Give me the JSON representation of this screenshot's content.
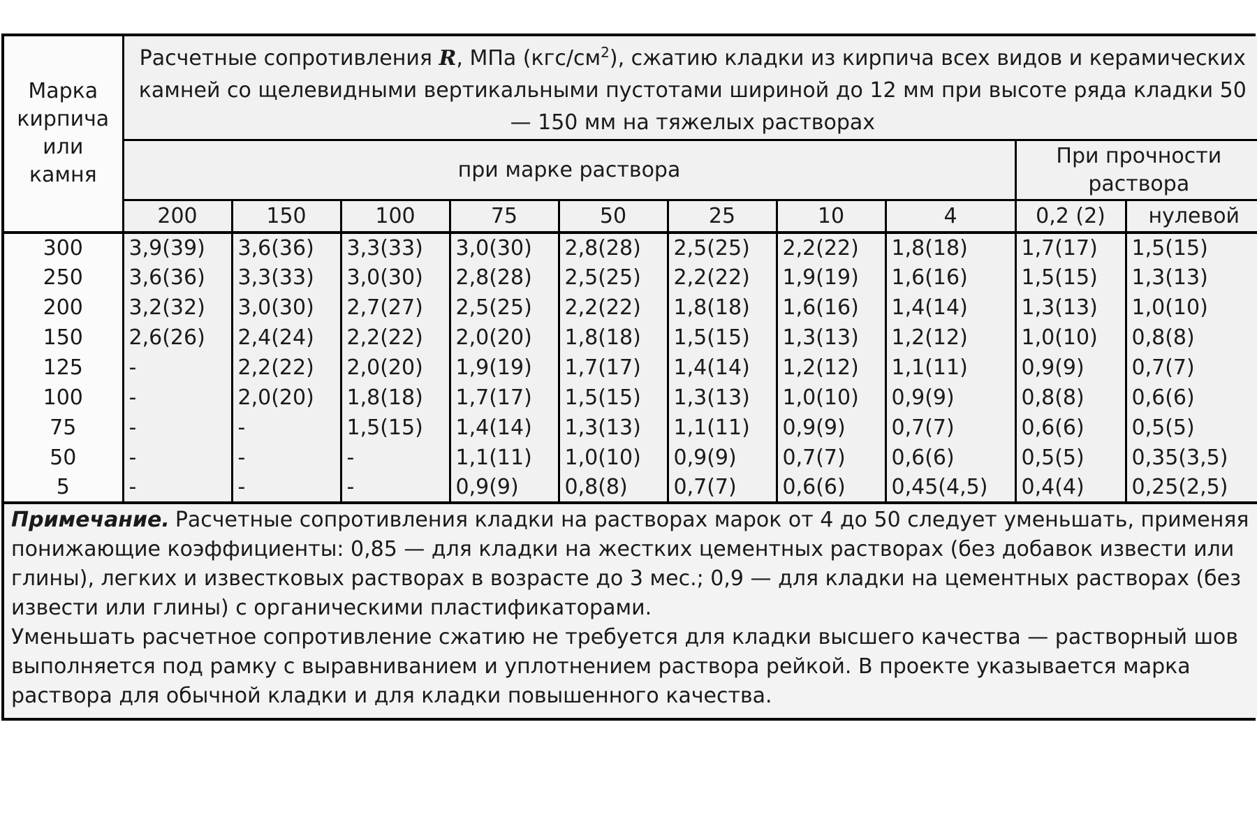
{
  "colors": {
    "border": "#000000",
    "cell_background": "#f1f1f1",
    "text": "#1a1a1a"
  },
  "table": {
    "corner_lines": [
      "Марка",
      "кирпича",
      "или",
      "камня"
    ],
    "title": {
      "part1": "Расчетные сопротивления ",
      "r": "R",
      "part2": ", МПа (кгс/см",
      "sup": "2",
      "part3": "), сжатию кладки из кирпича всех видов и керамических камней со щелевидными вертикальными пустотами шириной до 12 мм при высоте ряда кладки 50 — 150 мм на тяжелых растворах"
    },
    "group_left": "при марке раствора",
    "group_right": "При прочности раствора",
    "col_headers": [
      "200",
      "150",
      "100",
      "75",
      "50",
      "25",
      "10",
      "4",
      "0,2 (2)",
      "нулевой"
    ],
    "rows": [
      {
        "label": "300",
        "values": [
          "3,9(39)",
          "3,6(36)",
          "3,3(33)",
          "3,0(30)",
          "2,8(28)",
          "2,5(25)",
          "2,2(22)",
          "1,8(18)",
          "1,7(17)",
          "1,5(15)"
        ]
      },
      {
        "label": "250",
        "values": [
          "3,6(36)",
          "3,3(33)",
          "3,0(30)",
          "2,8(28)",
          "2,5(25)",
          "2,2(22)",
          "1,9(19)",
          "1,6(16)",
          "1,5(15)",
          "1,3(13)"
        ]
      },
      {
        "label": "200",
        "values": [
          "3,2(32)",
          "3,0(30)",
          "2,7(27)",
          "2,5(25)",
          "2,2(22)",
          "1,8(18)",
          "1,6(16)",
          "1,4(14)",
          "1,3(13)",
          "1,0(10)"
        ]
      },
      {
        "label": "150",
        "values": [
          "2,6(26)",
          "2,4(24)",
          "2,2(22)",
          "2,0(20)",
          "1,8(18)",
          "1,5(15)",
          "1,3(13)",
          "1,2(12)",
          "1,0(10)",
          "0,8(8)"
        ]
      },
      {
        "label": "125",
        "values": [
          "-",
          "2,2(22)",
          "2,0(20)",
          "1,9(19)",
          "1,7(17)",
          "1,4(14)",
          "1,2(12)",
          "1,1(11)",
          "0,9(9)",
          "0,7(7)"
        ]
      },
      {
        "label": "100",
        "values": [
          "-",
          "2,0(20)",
          "1,8(18)",
          "1,7(17)",
          "1,5(15)",
          "1,3(13)",
          "1,0(10)",
          "0,9(9)",
          "0,8(8)",
          "0,6(6)"
        ]
      },
      {
        "label": "75",
        "values": [
          "-",
          "-",
          "1,5(15)",
          "1,4(14)",
          "1,3(13)",
          "1,1(11)",
          "0,9(9)",
          "0,7(7)",
          "0,6(6)",
          "0,5(5)"
        ]
      },
      {
        "label": "50",
        "values": [
          "-",
          "-",
          "-",
          "1,1(11)",
          "1,0(10)",
          "0,9(9)",
          "0,7(7)",
          "0,6(6)",
          "0,5(5)",
          "0,35(3,5)"
        ]
      },
      {
        "label": "5",
        "values": [
          "-",
          "-",
          "-",
          "0,9(9)",
          "0,8(8)",
          "0,7(7)",
          "0,6(6)",
          "0,45(4,5)",
          "0,4(4)",
          "0,25(2,5)"
        ]
      }
    ]
  },
  "note": {
    "label": "Примечание.",
    "text1": "Расчетные сопротивления кладки на растворах марок от 4 до 50 следует уменьшать, применяя понижающие коэффициенты: 0,85 — для кладки на жестких цементных растворах (без добавок извести или глины), легких и известковых растворах в возрасте до 3 мес.; 0,9 — для кладки на цементных растворах (без извести или глины) с органическими пластификаторами.",
    "text2": "Уменьшать расчетное сопротивление сжатию не требуется для кладки высшего качества — растворный шов выполняется под рамку с выравниванием и уплотнением раствора рейкой. В проекте указывается марка раствора для обычной кладки и для кладки повышенного качества."
  }
}
